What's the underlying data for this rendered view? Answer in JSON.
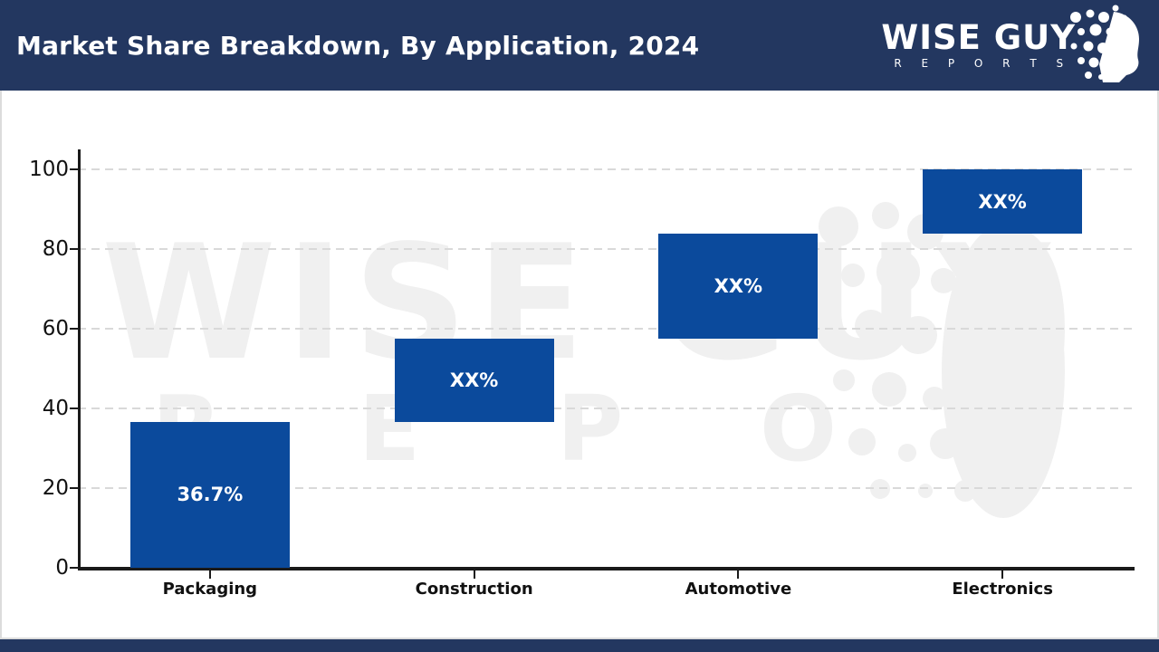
{
  "header": {
    "title": "Market Share Breakdown, By Application, 2024",
    "logo": {
      "line1": "WISE GUY",
      "line2": "R E P O R T S"
    }
  },
  "watermark": {
    "line1": "WISE GUY",
    "line2": "R E P O R T S"
  },
  "colors": {
    "navy": "#233760",
    "bar": "#0b4a9c",
    "grid": "#d9d9d9",
    "axis": "#1a1a1a",
    "watermark": "#f0f0f0",
    "bar_label": "#ffffff"
  },
  "chart_data": {
    "type": "bar",
    "subtype": "waterfall",
    "title": "Market Share Breakdown, By Application, 2024",
    "categories": [
      "Packaging",
      "Construction",
      "Automotive",
      "Electronics"
    ],
    "segments": [
      {
        "category": "Packaging",
        "start": 0,
        "end": 36.7,
        "label": "36.7%"
      },
      {
        "category": "Construction",
        "start": 36.7,
        "end": 57.4,
        "label": "XX%"
      },
      {
        "category": "Automotive",
        "start": 57.4,
        "end": 83.8,
        "label": "XX%"
      },
      {
        "category": "Electronics",
        "start": 83.8,
        "end": 100,
        "label": "XX%"
      }
    ],
    "yticks": [
      0,
      20,
      40,
      60,
      80,
      100
    ],
    "ylim": [
      0,
      105
    ],
    "xlabel": "",
    "ylabel": "",
    "grid": "dashed-horizontal",
    "legend": null
  }
}
